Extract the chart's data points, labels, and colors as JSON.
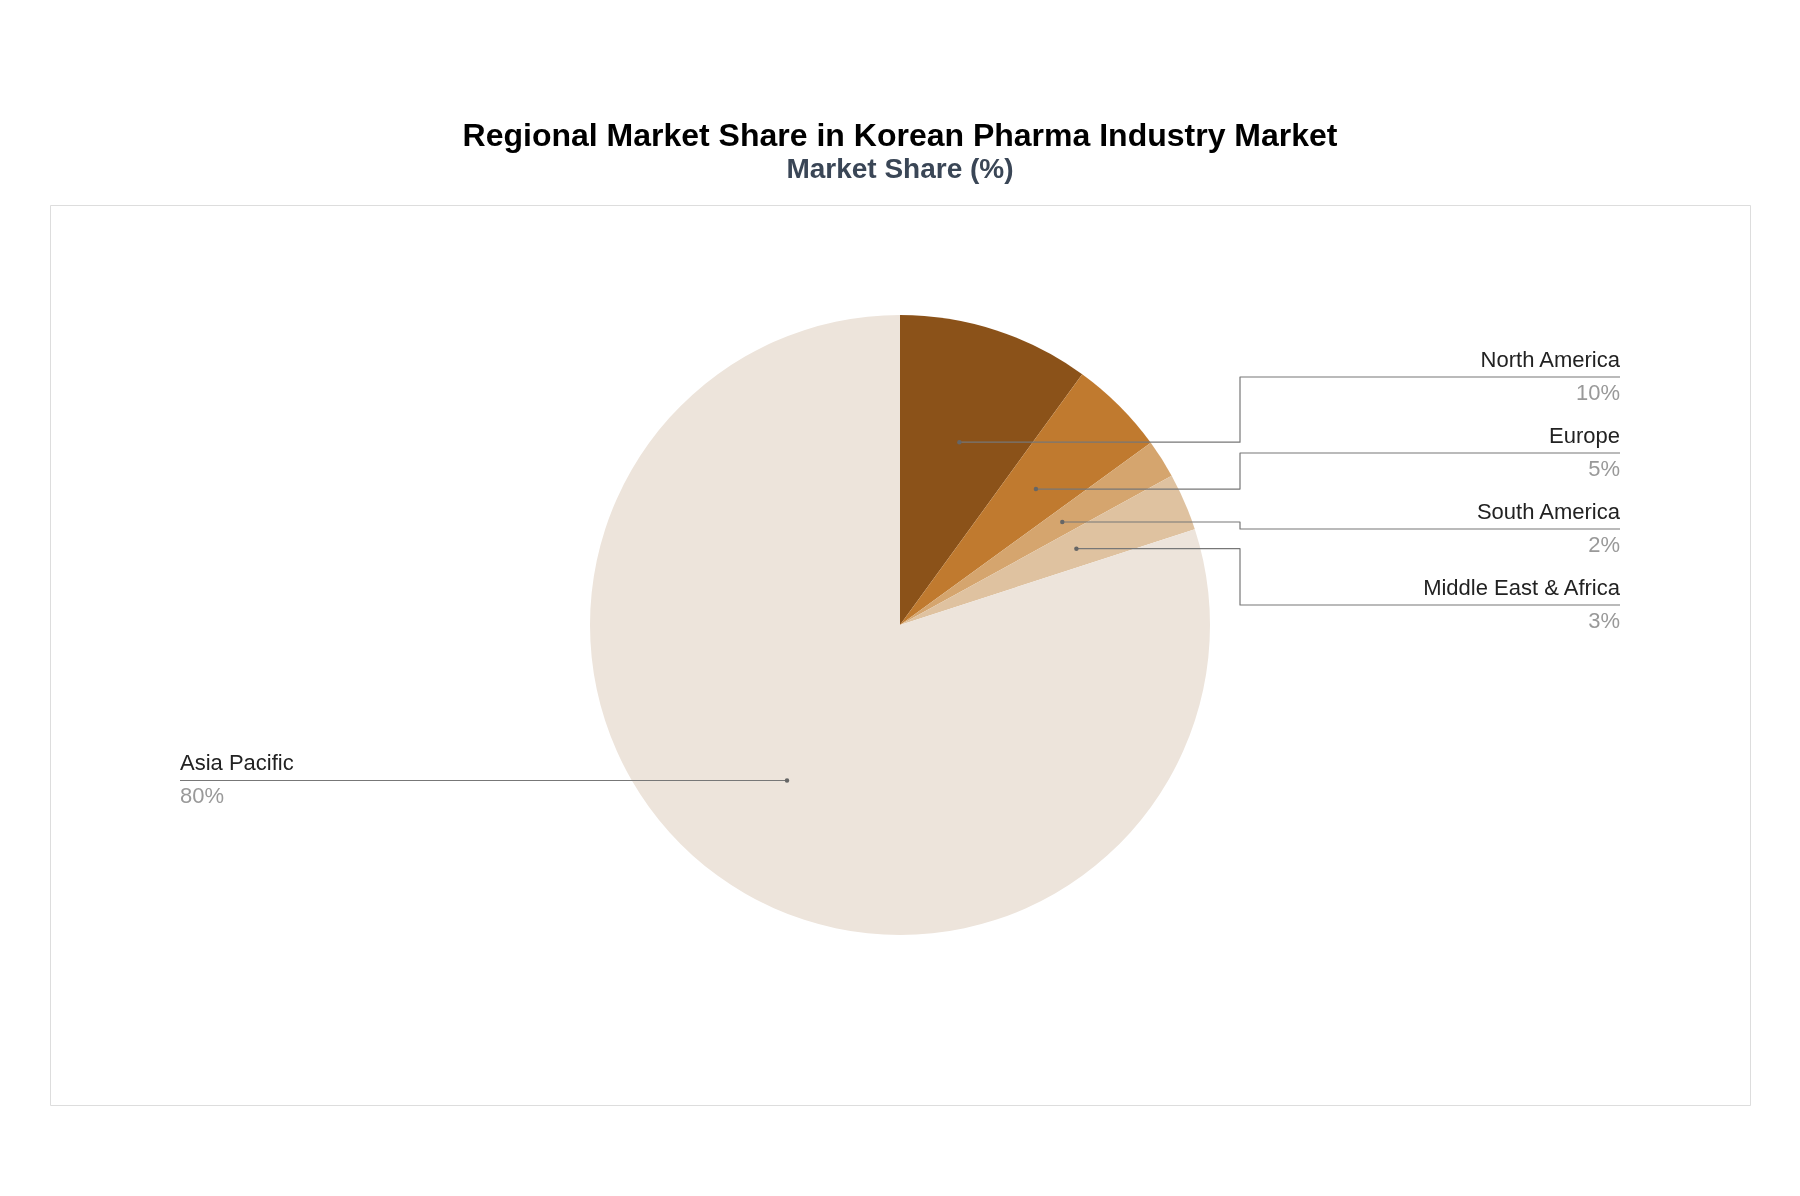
{
  "chart_data": {
    "type": "pie",
    "title": "Regional Market Share in Korean Pharma Industry Market",
    "subtitle": "Market Share (%)",
    "categories": [
      "North America",
      "Europe",
      "South America",
      "Middle East & Africa",
      "Asia Pacific"
    ],
    "values": [
      10,
      5,
      2,
      3,
      80
    ],
    "colors": [
      "#8b5219",
      "#c07a2f",
      "#d5a56e",
      "#dfc2a0",
      "#ede4db"
    ],
    "value_labels": [
      "10%",
      "5%",
      "2%",
      "3%",
      "80%"
    ]
  }
}
